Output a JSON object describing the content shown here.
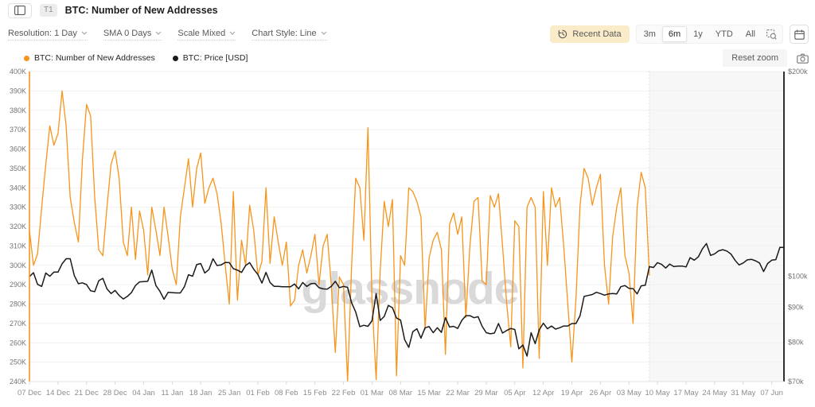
{
  "header": {
    "badge": "T1",
    "title": "BTC: Number of New Addresses"
  },
  "toolbar": {
    "dropdowns": [
      {
        "id": "resolution",
        "label": "Resolution: 1 Day"
      },
      {
        "id": "sma",
        "label": "SMA 0 Days"
      },
      {
        "id": "scale",
        "label": "Scale Mixed"
      },
      {
        "id": "chart-style",
        "label": "Chart Style: Line"
      }
    ],
    "recent_data_label": "Recent Data",
    "ranges": [
      {
        "id": "3m",
        "label": "3m"
      },
      {
        "id": "6m",
        "label": "6m"
      },
      {
        "id": "1y",
        "label": "1y"
      },
      {
        "id": "ytd",
        "label": "YTD"
      },
      {
        "id": "all",
        "label": "All"
      }
    ],
    "active_range": "6m",
    "reset_zoom_label": "Reset zoom"
  },
  "icons": [
    "panel-layout-icon",
    "history-icon",
    "zoom-area-icon",
    "calendar-icon",
    "camera-icon",
    "chevron-down-icon"
  ],
  "legend": [
    {
      "label": "BTC: Number of New Addresses",
      "color": "#f7941a"
    },
    {
      "label": "BTC: Price [USD]",
      "color": "#1a1a1a"
    }
  ],
  "chart_data": {
    "type": "line",
    "title": "BTC: Number of New Addresses",
    "watermark": "glassnode",
    "grid": "horizontal",
    "days_total": 185,
    "x_tick_labels": [
      "07 Dec",
      "14 Dec",
      "21 Dec",
      "28 Dec",
      "04 Jan",
      "11 Jan",
      "18 Jan",
      "25 Jan",
      "01 Feb",
      "08 Feb",
      "15 Feb",
      "22 Feb",
      "01 Mar",
      "08 Mar",
      "15 Mar",
      "22 Mar",
      "29 Mar",
      "05 Apr",
      "12 Apr",
      "19 Apr",
      "26 Apr",
      "03 May",
      "10 May",
      "17 May",
      "24 May",
      "31 May",
      "07 Jun"
    ],
    "left_axis": {
      "scale": "linear",
      "unit": "K addresses",
      "min_k": 240,
      "max_k": 400,
      "step_k": 10,
      "color": "#f7941a"
    },
    "right_axis": {
      "scale": "log",
      "unit": "USD",
      "min_usd_k": 70,
      "max_usd_k": 200,
      "tick_labels": [
        "$200k",
        "$100k",
        "$90k",
        "$80k",
        "$70k"
      ],
      "tick_values_usd_k": [
        200,
        100,
        90,
        80,
        70
      ],
      "color": "#1a1a1a"
    },
    "recent_data_region": {
      "start_day": 152,
      "fill": "#f7f7f7",
      "boundary": "dotted"
    },
    "series": [
      {
        "name": "BTC: Number of New Addresses",
        "color": "#f7941a",
        "axis": "left",
        "unit": "thousands of addresses",
        "start_day": 0,
        "values": [
          318,
          300,
          306,
          330,
          352,
          372,
          362,
          368,
          390,
          372,
          335,
          322,
          312,
          355,
          383,
          377,
          335,
          308,
          305,
          330,
          352,
          359,
          345,
          312,
          305,
          330,
          303,
          328,
          318,
          295,
          330,
          318,
          305,
          330,
          315,
          298,
          290,
          325,
          340,
          355,
          330,
          350,
          358,
          332,
          340,
          345,
          337,
          322,
          300,
          280,
          338,
          282,
          313,
          300,
          331,
          318,
          295,
          302,
          340,
          301,
          325,
          312,
          300,
          312,
          279,
          282,
          300,
          308,
          296,
          305,
          316,
          290,
          310,
          316,
          290,
          255,
          294,
          290,
          240,
          300,
          345,
          340,
          313,
          371,
          282,
          241,
          297,
          333,
          320,
          334,
          243,
          305,
          300,
          340,
          338,
          333,
          325,
          267,
          304,
          313,
          317,
          308,
          254,
          321,
          327,
          316,
          325,
          273,
          310,
          333,
          335,
          292,
          290,
          336,
          330,
          337,
          310,
          281,
          258,
          323,
          320,
          247,
          330,
          335,
          330,
          252,
          338,
          300,
          340,
          330,
          335,
          310,
          280,
          250,
          283,
          331,
          350,
          345,
          331,
          340,
          347,
          300,
          280,
          315,
          330,
          340,
          305,
          296,
          270,
          330,
          348,
          340,
          295
        ]
      },
      {
        "name": "BTC: Price [USD]",
        "color": "#1a1a1a",
        "axis": "right",
        "unit": "thousands of USD",
        "start_day": 0,
        "values": [
          99.9,
          101.2,
          97.3,
          96.6,
          101.1,
          100.0,
          101.4,
          101.4,
          104.3,
          106.1,
          106.1,
          100.2,
          97.5,
          97.8,
          97.2,
          95.2,
          94.9,
          98.5,
          99.3,
          95.8,
          94.3,
          95.3,
          93.7,
          92.6,
          93.4,
          94.6,
          96.9,
          98.1,
          98.2,
          98.3,
          102.1,
          96.9,
          95.0,
          92.5,
          94.7,
          94.6,
          94.5,
          94.5,
          96.5,
          100.5,
          100.0,
          104.0,
          104.4,
          101.1,
          102.3,
          106.1,
          103.7,
          103.9,
          104.8,
          104.7,
          102.6,
          102.1,
          101.3,
          103.7,
          104.7,
          102.4,
          100.6,
          97.7,
          101.3,
          97.9,
          96.6,
          96.6,
          96.5,
          96.5,
          96.5,
          97.4,
          95.8,
          97.9,
          96.6,
          97.5,
          97.6,
          96.2,
          95.8,
          95.7,
          96.6,
          98.3,
          96.2,
          96.6,
          96.3,
          91.4,
          88.6,
          84.3,
          84.7,
          84.4,
          86.0,
          94.3,
          86.1,
          87.3,
          90.6,
          89.9,
          86.8,
          86.2,
          80.7,
          78.6,
          82.9,
          83.7,
          81.1,
          84.0,
          84.3,
          82.6,
          84.0,
          82.7,
          86.9,
          84.2,
          84.4,
          83.8,
          86.1,
          87.5,
          87.5,
          86.9,
          87.2,
          84.4,
          82.6,
          82.3,
          82.5,
          85.2,
          82.5,
          83.2,
          83.8,
          83.5,
          78.2,
          79.2,
          76.3,
          82.6,
          79.6,
          83.4,
          85.3,
          83.7,
          84.5,
          83.6,
          84.0,
          84.5,
          84.5,
          85.2,
          85.2,
          87.5,
          93.4,
          93.7,
          94.0,
          94.7,
          94.3,
          93.8,
          94.2,
          94.3,
          94.2,
          96.5,
          96.9,
          96.0,
          95.9,
          94.2,
          96.8,
          97.0,
          103.3,
          103.0,
          104.7,
          104.1,
          102.8,
          104.2,
          103.3,
          103.5,
          103.5,
          103.2,
          106.5,
          105.6,
          106.8,
          109.7,
          111.7,
          107.3,
          107.9,
          109.0,
          109.4,
          108.9,
          107.8,
          105.6,
          103.9,
          104.6,
          105.7,
          105.9,
          105.4,
          104.6,
          101.6,
          104.4,
          105.6,
          105.8,
          110.3,
          110.2
        ]
      }
    ]
  }
}
